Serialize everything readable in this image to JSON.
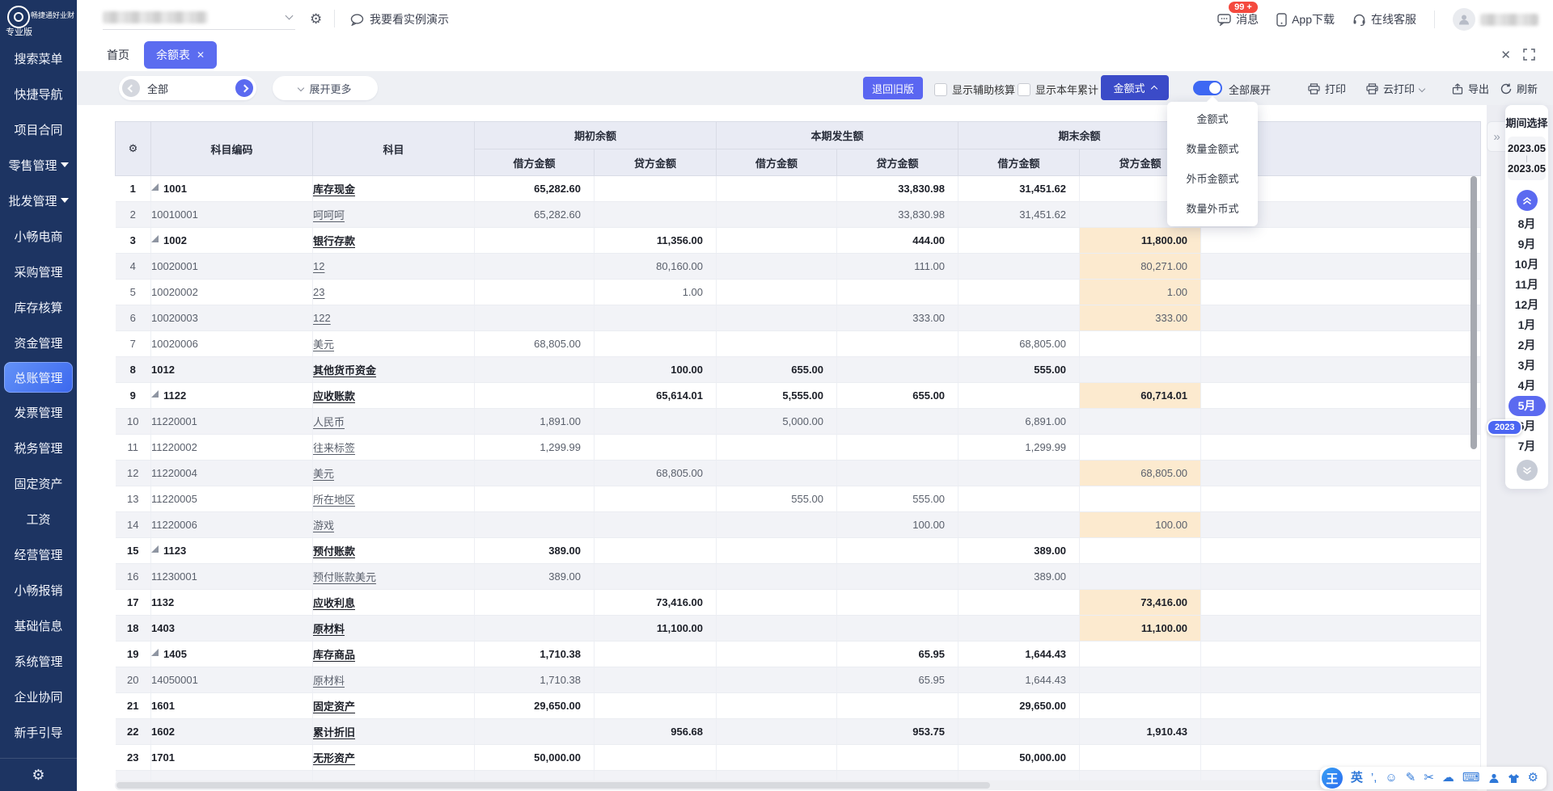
{
  "brand": {
    "name": "畅捷通好业财",
    "edition": "专业版"
  },
  "topbar": {
    "demo": "我要看实例演示",
    "messages": "消息",
    "messages_badge": "99 +",
    "app_download": "App下载",
    "online_service": "在线客服"
  },
  "tabs": {
    "home": "首页",
    "current": "余额表",
    "close": "✕"
  },
  "toolbar": {
    "scope_value": "全部",
    "expand_more": "展开更多",
    "back_old_version": "退回旧版",
    "show_aux": "显示辅助核算",
    "show_ytd": "显示本年累计",
    "format_button": "金额式",
    "expand_all": "全部展开",
    "print": "打印",
    "cloud_print": "云打印",
    "export": "导出",
    "refresh": "刷新"
  },
  "format_menu": [
    "金额式",
    "数量金额式",
    "外币金额式",
    "数量外币式"
  ],
  "sidebar": [
    {
      "label": "搜索菜单"
    },
    {
      "label": "快捷导航"
    },
    {
      "label": "项目合同"
    },
    {
      "label": "零售管理",
      "arrow": true
    },
    {
      "label": "批发管理",
      "arrow": true
    },
    {
      "label": "小畅电商"
    },
    {
      "label": "采购管理"
    },
    {
      "label": "库存核算"
    },
    {
      "label": "资金管理"
    },
    {
      "label": "总账管理",
      "active": true
    },
    {
      "label": "发票管理"
    },
    {
      "label": "税务管理"
    },
    {
      "label": "固定资产"
    },
    {
      "label": "工资"
    },
    {
      "label": "经营管理"
    },
    {
      "label": "小畅报销"
    },
    {
      "label": "基础信息"
    },
    {
      "label": "系统管理"
    },
    {
      "label": "企业协同"
    },
    {
      "label": "新手引导"
    }
  ],
  "table": {
    "code_header": "科目编码",
    "subject_header": "科目",
    "groups": [
      "期初余额",
      "本期发生额",
      "期末余额"
    ],
    "debit_header": "借方金额",
    "credit_header": "贷方金额",
    "rows": [
      {
        "n": 1,
        "code": "1001",
        "name": "库存现金",
        "parent": true,
        "expand": true,
        "v": [
          "65,282.60",
          "",
          "",
          "33,830.98",
          "31,451.62",
          ""
        ],
        "orange": false
      },
      {
        "n": 2,
        "code": "10010001",
        "name": "呵呵呵",
        "parent": false,
        "expand": false,
        "v": [
          "65,282.60",
          "",
          "",
          "33,830.98",
          "31,451.62",
          ""
        ],
        "orange": false
      },
      {
        "n": 3,
        "code": "1002",
        "name": "银行存款",
        "parent": true,
        "expand": true,
        "v": [
          "",
          "11,356.00",
          "",
          "444.00",
          "",
          "11,800.00"
        ],
        "orange": true
      },
      {
        "n": 4,
        "code": "10020001",
        "name": "12",
        "parent": false,
        "expand": false,
        "v": [
          "",
          "80,160.00",
          "",
          "111.00",
          "",
          "80,271.00"
        ],
        "orange": true
      },
      {
        "n": 5,
        "code": "10020002",
        "name": "23",
        "parent": false,
        "expand": false,
        "v": [
          "",
          "1.00",
          "",
          "",
          "",
          "1.00"
        ],
        "orange": true
      },
      {
        "n": 6,
        "code": "10020003",
        "name": "122",
        "parent": false,
        "expand": false,
        "v": [
          "",
          "",
          "",
          "333.00",
          "",
          "333.00"
        ],
        "orange": true
      },
      {
        "n": 7,
        "code": "10020006",
        "name": "美元",
        "parent": false,
        "expand": false,
        "v": [
          "68,805.00",
          "",
          "",
          "",
          "68,805.00",
          ""
        ],
        "orange": false
      },
      {
        "n": 8,
        "code": "1012",
        "name": "其他货币资金",
        "parent": true,
        "expand": false,
        "v": [
          "",
          "100.00",
          "655.00",
          "",
          "555.00",
          ""
        ],
        "orange": false
      },
      {
        "n": 9,
        "code": "1122",
        "name": "应收账款",
        "parent": true,
        "expand": true,
        "v": [
          "",
          "65,614.01",
          "5,555.00",
          "655.00",
          "",
          "60,714.01"
        ],
        "orange": true
      },
      {
        "n": 10,
        "code": "11220001",
        "name": "人民币",
        "parent": false,
        "expand": false,
        "v": [
          "1,891.00",
          "",
          "5,000.00",
          "",
          "6,891.00",
          ""
        ],
        "orange": false
      },
      {
        "n": 11,
        "code": "11220002",
        "name": "往来标签",
        "parent": false,
        "expand": false,
        "v": [
          "1,299.99",
          "",
          "",
          "",
          "1,299.99",
          ""
        ],
        "orange": false
      },
      {
        "n": 12,
        "code": "11220004",
        "name": "美元",
        "parent": false,
        "expand": false,
        "v": [
          "",
          "68,805.00",
          "",
          "",
          "",
          "68,805.00"
        ],
        "orange": true
      },
      {
        "n": 13,
        "code": "11220005",
        "name": "所在地区",
        "parent": false,
        "expand": false,
        "v": [
          "",
          "",
          "555.00",
          "555.00",
          "",
          ""
        ],
        "orange": false
      },
      {
        "n": 14,
        "code": "11220006",
        "name": "游戏",
        "parent": false,
        "expand": false,
        "v": [
          "",
          "",
          "",
          "100.00",
          "",
          "100.00"
        ],
        "orange": true
      },
      {
        "n": 15,
        "code": "1123",
        "name": "预付账款",
        "parent": true,
        "expand": true,
        "v": [
          "389.00",
          "",
          "",
          "",
          "389.00",
          ""
        ],
        "orange": false
      },
      {
        "n": 16,
        "code": "11230001",
        "name": "预付账款美元",
        "parent": false,
        "expand": false,
        "v": [
          "389.00",
          "",
          "",
          "",
          "389.00",
          ""
        ],
        "orange": false
      },
      {
        "n": 17,
        "code": "1132",
        "name": "应收利息",
        "parent": true,
        "expand": false,
        "v": [
          "",
          "73,416.00",
          "",
          "",
          "",
          "73,416.00"
        ],
        "orange": true
      },
      {
        "n": 18,
        "code": "1403",
        "name": "原材料",
        "parent": true,
        "expand": false,
        "v": [
          "",
          "11,100.00",
          "",
          "",
          "",
          "11,100.00"
        ],
        "orange": true
      },
      {
        "n": 19,
        "code": "1405",
        "name": "库存商品",
        "parent": true,
        "expand": true,
        "v": [
          "1,710.38",
          "",
          "",
          "65.95",
          "1,644.43",
          ""
        ],
        "orange": false
      },
      {
        "n": 20,
        "code": "14050001",
        "name": "原材料",
        "parent": false,
        "expand": false,
        "v": [
          "1,710.38",
          "",
          "",
          "65.95",
          "1,644.43",
          ""
        ],
        "orange": false
      },
      {
        "n": 21,
        "code": "1601",
        "name": "固定资产",
        "parent": true,
        "expand": false,
        "v": [
          "29,650.00",
          "",
          "",
          "",
          "29,650.00",
          ""
        ],
        "orange": false
      },
      {
        "n": 22,
        "code": "1602",
        "name": "累计折旧",
        "parent": true,
        "expand": false,
        "v": [
          "",
          "956.68",
          "",
          "953.75",
          "",
          "1,910.43"
        ],
        "orange": false
      },
      {
        "n": 23,
        "code": "1701",
        "name": "无形资产",
        "parent": true,
        "expand": false,
        "v": [
          "50,000.00",
          "",
          "",
          "",
          "50,000.00",
          ""
        ],
        "orange": false
      }
    ]
  },
  "period_panel": {
    "title": "期间选择",
    "from": "2023.05",
    "to": "2023.05",
    "year_badge": "2023",
    "months": [
      "8月",
      "9月",
      "10月",
      "11月",
      "12月",
      "1月",
      "2月",
      "3月",
      "4月",
      "5月",
      "6月",
      "7月"
    ],
    "selected_month": "5月"
  },
  "ime": {
    "logo": "王",
    "lang": "英",
    "icons": [
      {
        "name": "punctuation-icon",
        "glyph": "’,"
      },
      {
        "name": "smiley-icon",
        "glyph": "☺"
      },
      {
        "name": "pencil-icon",
        "glyph": "✎"
      },
      {
        "name": "scissors-icon",
        "glyph": "✂"
      },
      {
        "name": "cloud-icon",
        "glyph": "☁"
      },
      {
        "name": "keyboard-icon",
        "glyph": "⌨"
      },
      {
        "name": "user-icon",
        "svg": "person"
      },
      {
        "name": "skin-icon",
        "svg": "shirt"
      },
      {
        "name": "settings-icon",
        "glyph": "⚙"
      }
    ]
  },
  "colors": {
    "accent": "#5b6af0",
    "sidebar": "#1d3462",
    "warning_cell": "#fceacf",
    "format_button": "#3b4bc8"
  }
}
